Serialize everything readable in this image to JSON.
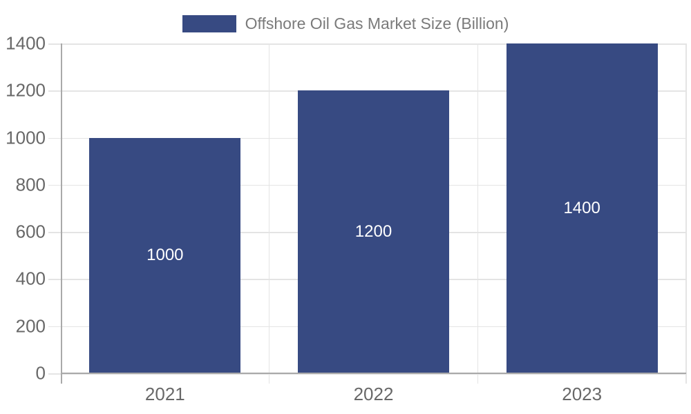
{
  "legend": {
    "label": "Offshore Oil Gas Market Size (Billion)"
  },
  "chart_data": {
    "type": "bar",
    "title": "Offshore Oil Gas Market Size (Billion)",
    "categories": [
      "2021",
      "2022",
      "2023"
    ],
    "series": [
      {
        "name": "Offshore Oil Gas Market Size (Billion)",
        "values": [
          1000,
          1200,
          1400
        ]
      }
    ],
    "bar_labels": [
      "1000",
      "1200",
      "1400"
    ],
    "bar_label_position": "inside-middle",
    "xlabel": "",
    "ylabel": "",
    "ylim": [
      0,
      1400
    ],
    "yticks": [
      0,
      200,
      400,
      600,
      800,
      1000,
      1200,
      1400
    ],
    "grid": true,
    "legend_position": "top-center"
  },
  "colors": {
    "bar": "#374A82",
    "gridline": "#E4E4E4",
    "axis_line": "#A9A9A9",
    "tick_label": "#686868",
    "legend_text": "#7A7A7A",
    "bar_label": "#FFFFFF",
    "background": "#FFFFFF"
  }
}
